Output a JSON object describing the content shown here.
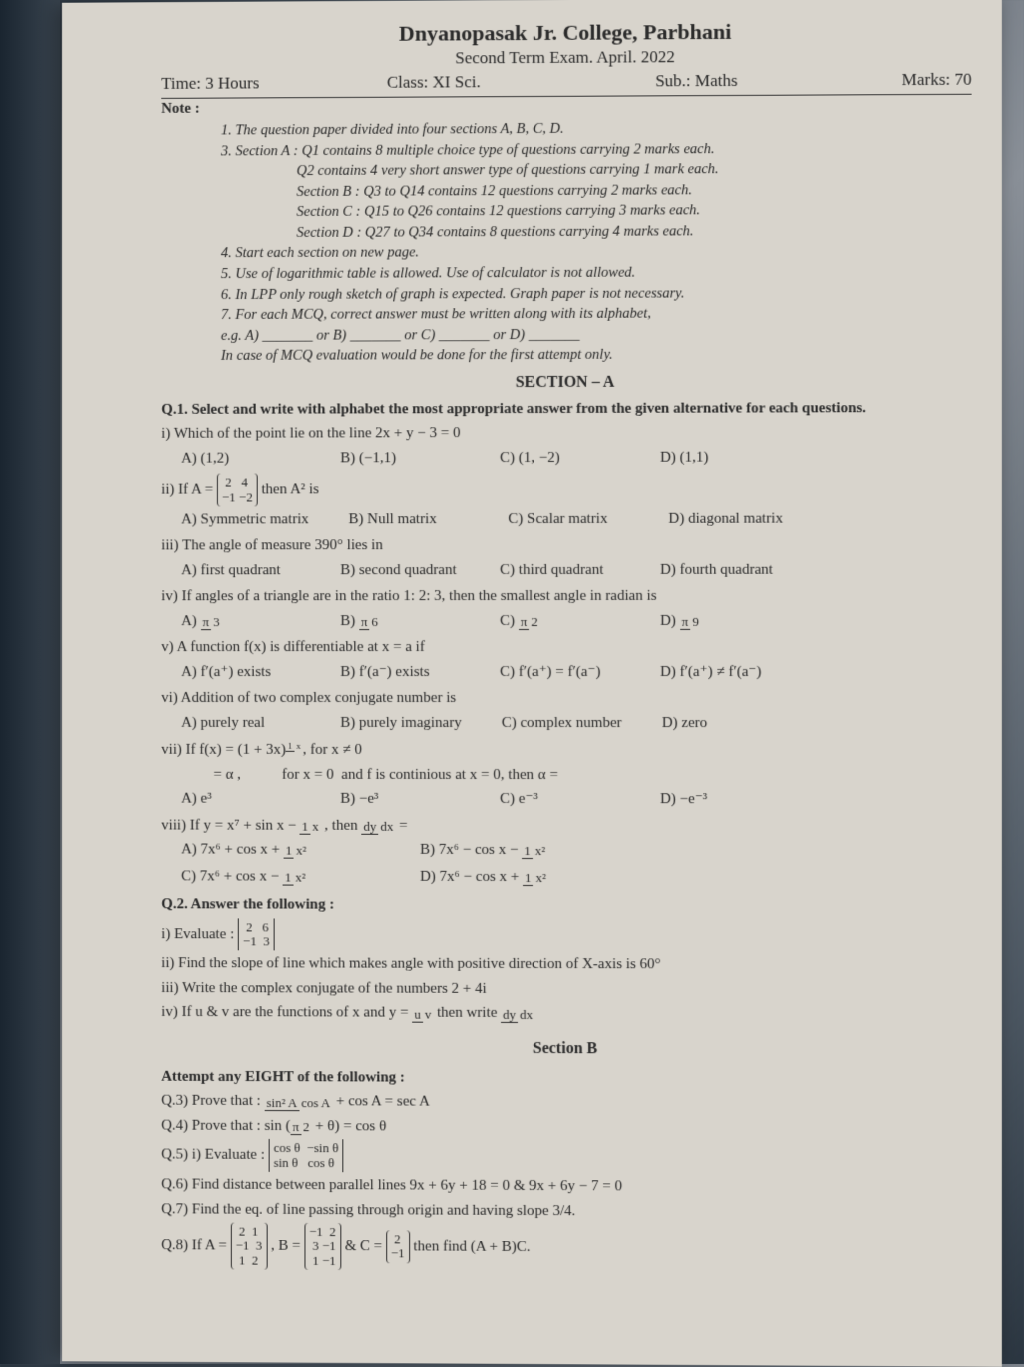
{
  "header": {
    "college": "Dnyanopasak Jr. College, Parbhani",
    "exam": "Second Term Exam. April. 2022",
    "time": "Time: 3 Hours",
    "class": "Class: XI Sci.",
    "subject": "Sub.: Maths",
    "marks": "Marks: 70",
    "note_label": "Note :"
  },
  "notes": {
    "n1": "1. The question paper divided into four sections A, B, C, D.",
    "n3": "3. Section A : Q1 contains 8 multiple choice type of questions carrying 2 marks each.",
    "n3a": "Q2 contains 4 very short answer type of questions carrying 1 mark each.",
    "n3b": "Section B : Q3 to Q14  contains 12 questions carrying 2 marks each.",
    "n3c": "Section C : Q15 to Q26  contains 12 questions carrying 3 marks each.",
    "n3d": "Section D : Q27 to Q34  contains 8 questions carrying 4 marks each.",
    "n4": "4. Start each section on new page.",
    "n5": "5. Use of logarithmic table is allowed. Use of calculator is not allowed.",
    "n6": "6. In LPP only rough sketch of graph is expected. Graph paper is not necessary.",
    "n7": "7. For each MCQ, correct answer must be written along with its alphabet,",
    "n7a": "e.g. A) _______  or  B) _______  or  C) _______  or  D) _______",
    "n7b": "In case of MCQ evaluation would be done for the first attempt only."
  },
  "sectionA": {
    "label": "SECTION – A",
    "q1_title": "Q.1. Select and write with alphabet the most appropriate answer from the given alternative for each questions.",
    "i": {
      "text": "i) Which of the point lie on the line 2x + y − 3 = 0",
      "a": "A) (1,2)",
      "b": "B) (−1,1)",
      "c": "C) (1, −2)",
      "d": "D) (1,1)"
    },
    "ii": {
      "prefix": "ii) If A =",
      "suffix": "then  A² is",
      "a": "A) Symmetric matrix",
      "b": "B) Null matrix",
      "c": "C) Scalar matrix",
      "d": "D) diagonal matrix"
    },
    "iii": {
      "text": "iii) The angle of measure 390° lies in",
      "a": "A) first quadrant",
      "b": "B) second quadrant",
      "c": "C) third quadrant",
      "d": "D) fourth quadrant"
    },
    "iv": {
      "text": "iv) If angles of a triangle are in the ratio 1: 2: 3, then the smallest angle in radian is",
      "a_l": "A)",
      "b_l": "B)",
      "c_l": "C)",
      "d_l": "D)"
    },
    "v": {
      "text": "v) A function f(x) is differentiable at x = a if",
      "a": "A) f′(a⁺) exists",
      "b": "B) f′(a⁻) exists",
      "c": "C) f′(a⁺) = f′(a⁻)",
      "d": "D) f′(a⁺) ≠ f′(a⁻)"
    },
    "vi": {
      "text": "vi) Addition of two complex conjugate number is",
      "a": "A) purely real",
      "b": "B) purely imaginary",
      "c": "C) complex number",
      "d": "D) zero"
    },
    "vii": {
      "line1_pre": "vii) If f(x) = (1 + 3x)",
      "line1_post": ",  for x ≠ 0",
      "line2": "              = α ,           for x = 0  and f is continious at x = 0, then α =",
      "a": "A) e³",
      "b": "B) −e³",
      "c": "C) e⁻³",
      "d": "D) −e⁻³"
    },
    "viii": {
      "prefix": "viii) If y = x⁷ + sin x −",
      "mid": ", then",
      "eq": "=",
      "a_l": "A) 7x⁶ + cos x +",
      "b_l": "B) 7x⁶ − cos x −",
      "c_l": "C) 7x⁶ + cos x −",
      "d_l": "D) 7x⁶ − cos x +"
    },
    "q2_title": "Q.2. Answer the following :",
    "q2i_pre": "i) Evaluate :",
    "q2ii": "ii) Find the slope of line which makes angle with positive direction of X-axis is 60°",
    "q2iii": "iii) Write the complex conjugate of the numbers  2 + 4i",
    "q2iv_pre": "iv) If u & v are the functions of x and y =",
    "q2iv_mid": "then write"
  },
  "sectionB": {
    "label": "Section B",
    "attempt": "Attempt any EIGHT of the following :",
    "q3_pre": "Q.3) Prove that :",
    "q3_post": "+ cos A = sec A",
    "q4_pre": "Q.4) Prove that :  sin",
    "q4_post": "= cos θ",
    "q5_pre": "Q.5) i) Evaluate :",
    "q6": "Q.6) Find distance between parallel lines 9x + 6y + 18 = 0 & 9x + 6y − 7 = 0",
    "q7": "Q.7) Find the eq. of line passing through origin and having slope 3/4.",
    "q8_pre": "Q.8) If A =",
    "q8_mid1": ", B =",
    "q8_mid2": " & C =",
    "q8_post": " then find (A + B)C."
  }
}
